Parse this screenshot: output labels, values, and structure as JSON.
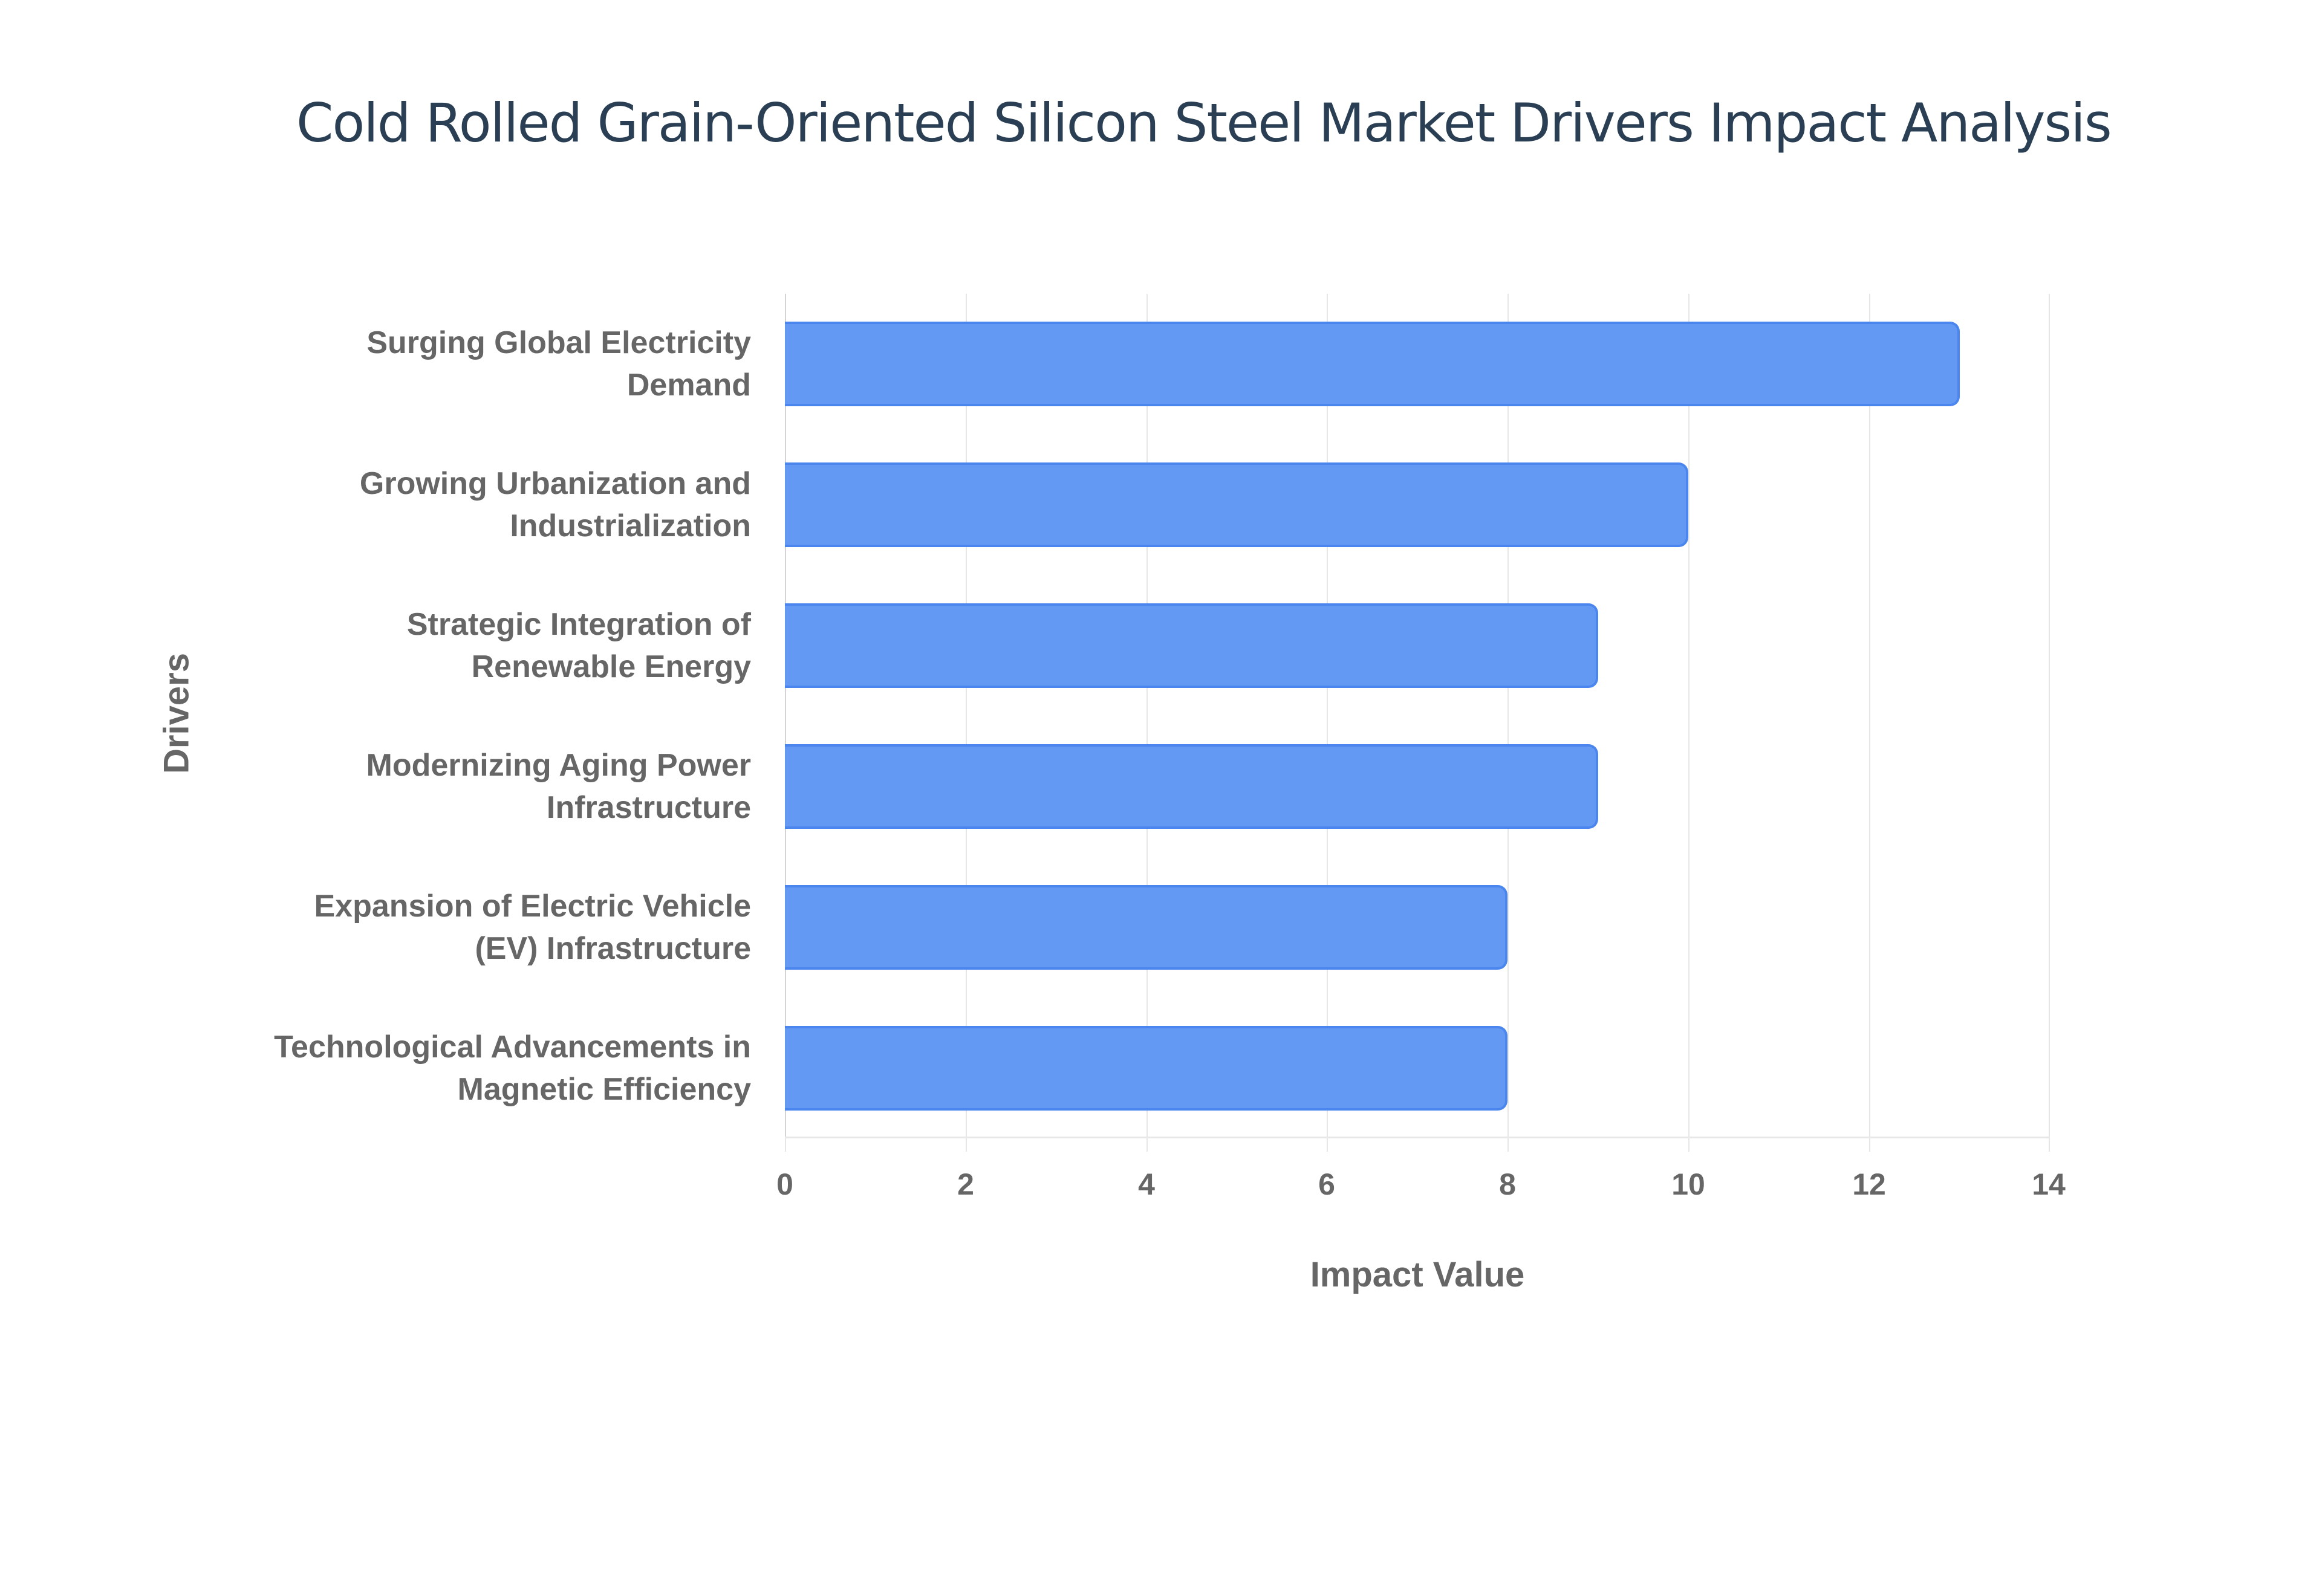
{
  "title": "Cold Rolled Grain-Oriented Silicon Steel Market Drivers Impact Analysis",
  "colors": {
    "bar": "#6399f3",
    "bar_border": "#4a86ee",
    "title": "#2a3f54",
    "axis_text": "#666666",
    "grid": "#e6e6e6"
  },
  "axes": {
    "x_title": "Impact Value",
    "y_title": "Drivers",
    "x_ticks": [
      "0",
      "2",
      "4",
      "6",
      "8",
      "10",
      "12",
      "14"
    ]
  },
  "bars": [
    {
      "line1": "Surging Global Electricity",
      "line2": "Demand",
      "value": 13
    },
    {
      "line1": "Growing Urbanization and",
      "line2": "Industrialization",
      "value": 10
    },
    {
      "line1": "Strategic Integration of",
      "line2": "Renewable Energy",
      "value": 9
    },
    {
      "line1": "Modernizing Aging Power",
      "line2": "Infrastructure",
      "value": 9
    },
    {
      "line1": "Expansion of Electric Vehicle",
      "line2": "(EV) Infrastructure",
      "value": 8
    },
    {
      "line1": "Technological Advancements in",
      "line2": "Magnetic Efficiency",
      "value": 8
    }
  ],
  "chart_data": {
    "type": "bar",
    "orientation": "horizontal",
    "title": "Cold Rolled Grain-Oriented Silicon Steel Market Drivers Impact Analysis",
    "xlabel": "Impact Value",
    "ylabel": "Drivers",
    "categories": [
      "Surging Global Electricity Demand",
      "Growing Urbanization and Industrialization",
      "Strategic Integration of Renewable Energy",
      "Modernizing Aging Power Infrastructure",
      "Expansion of Electric Vehicle (EV) Infrastructure",
      "Technological Advancements in Magnetic Efficiency"
    ],
    "values": [
      13,
      10,
      9,
      9,
      8,
      8
    ],
    "xlim": [
      0,
      14
    ],
    "x_ticks": [
      0,
      2,
      4,
      6,
      8,
      10,
      12,
      14
    ],
    "grid": "vertical",
    "legend": "none"
  }
}
